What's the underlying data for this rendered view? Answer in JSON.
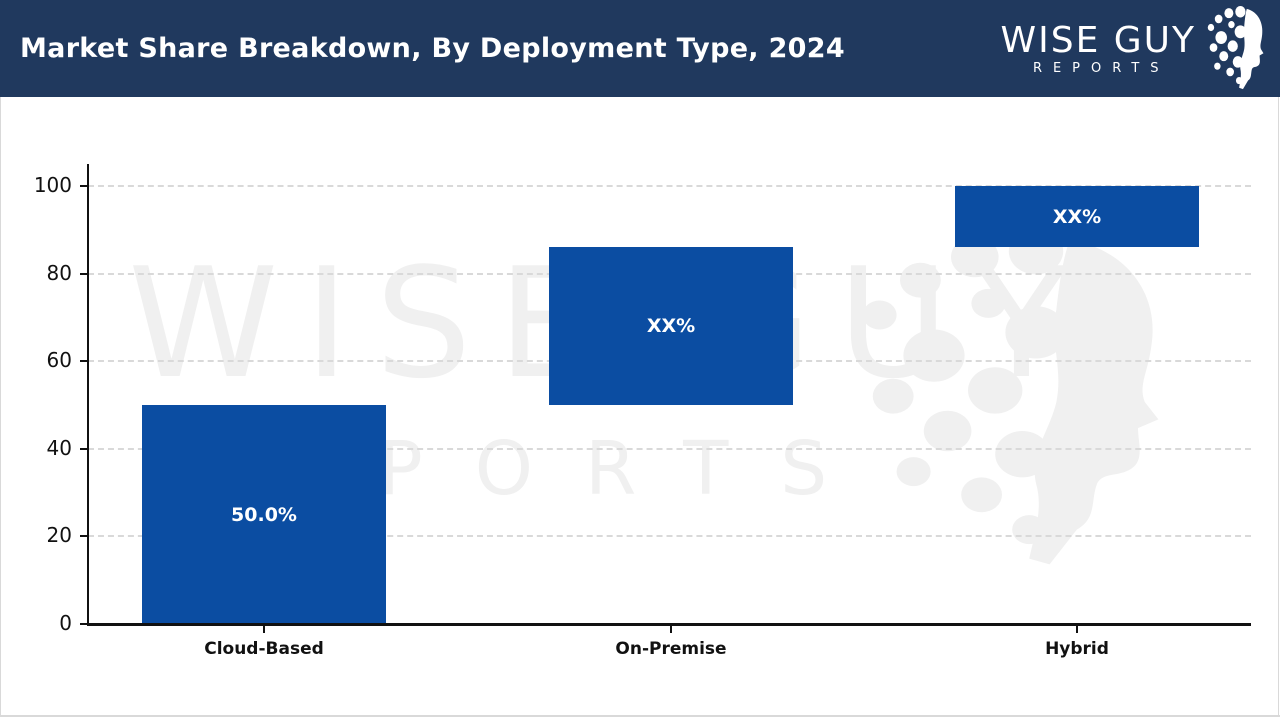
{
  "header": {
    "title": "Market Share Breakdown, By Deployment Type, 2024",
    "bg_color": "#20395e",
    "logo": {
      "line1": "WISE GUY",
      "line2": "REPORTS"
    }
  },
  "watermark": {
    "line1": "WISE GUY",
    "line2": "REPORTS",
    "color": "#f0f0f0"
  },
  "chart_data": {
    "type": "bar",
    "subtype": "stacked-waterfall",
    "title": "Market Share Breakdown, By Deployment Type, 2024",
    "categories": [
      "Cloud-Based",
      "On-Premise",
      "Hybrid"
    ],
    "segments": [
      {
        "category": "Cloud-Based",
        "label": "50.0%",
        "start": 0,
        "end": 50,
        "value": 50.0
      },
      {
        "category": "On-Premise",
        "label": "XX%",
        "start": 50,
        "end": 86,
        "value": "masked"
      },
      {
        "category": "Hybrid",
        "label": "XX%",
        "start": 86,
        "end": 100,
        "value": "masked"
      }
    ],
    "xlabel": "",
    "ylabel": "",
    "yticks": [
      0,
      20,
      40,
      60,
      80,
      100
    ],
    "ylim": [
      0,
      105
    ],
    "grid": "horizontal-dashed",
    "legend": false,
    "bar_color": "#0b4da2",
    "bar_label_color": "#ffffff",
    "grid_color": "#d9d9d9",
    "axis_color": "#111111"
  }
}
